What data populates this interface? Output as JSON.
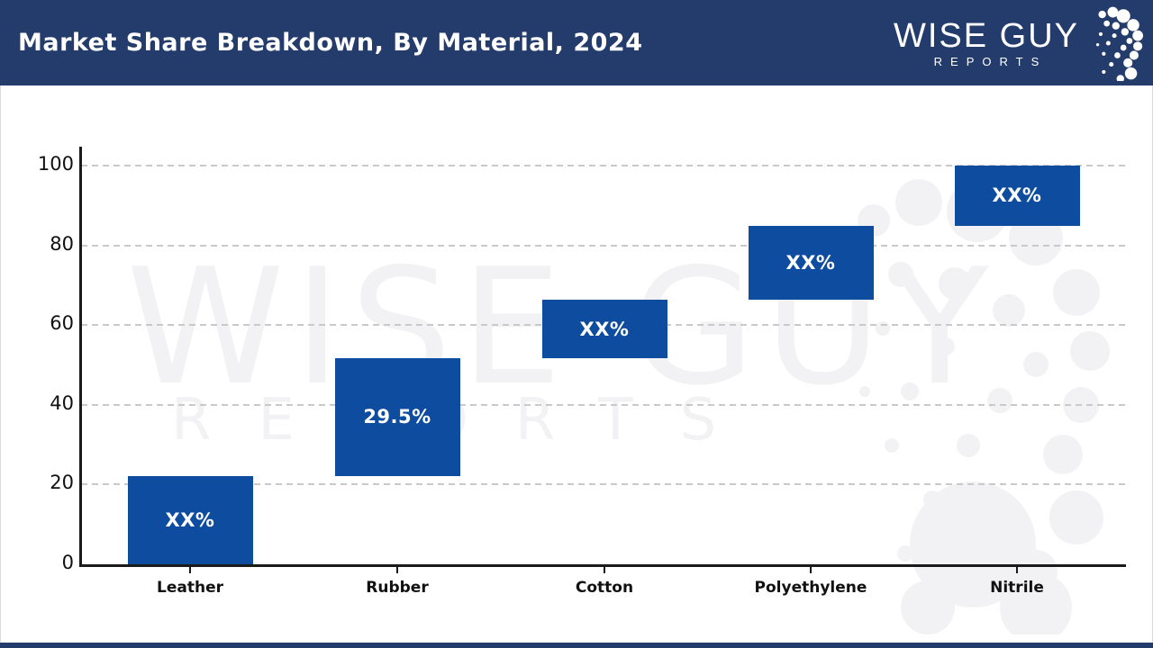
{
  "header": {
    "title": "Market Share Breakdown, By Material, 2024",
    "logo": {
      "line1": "WISE GUY",
      "line2": "REPORTS"
    }
  },
  "watermark": {
    "line1": "WISE GUY",
    "line2": "REPORTS"
  },
  "colors": {
    "header_bg": "#233c6c",
    "footer_bg": "#233c6c",
    "bar": "#0d4c9f",
    "bar_label_text": "#ffffff",
    "gridline": "#c9c9c9",
    "axis": "#1a1a1a",
    "watermark": "#f2f2f4",
    "title_text": "#ffffff"
  },
  "chart_data": {
    "type": "bar",
    "subtype": "waterfall",
    "title": "Market Share Breakdown, By Material, 2024",
    "categories": [
      "Leather",
      "Rubber",
      "Cotton",
      "Polyethylene",
      "Nitrile"
    ],
    "segments": [
      {
        "category": "Leather",
        "start": 0,
        "end": 22.2,
        "label": "XX%"
      },
      {
        "category": "Rubber",
        "start": 22.2,
        "end": 51.7,
        "label": "29.5%"
      },
      {
        "category": "Cotton",
        "start": 51.7,
        "end": 66.4,
        "label": "XX%"
      },
      {
        "category": "Polyethylene",
        "start": 66.4,
        "end": 85.0,
        "label": "XX%"
      },
      {
        "category": "Nitrile",
        "start": 85.0,
        "end": 100.0,
        "label": "XX%"
      }
    ],
    "xlabel": "",
    "ylabel": "",
    "yticks": [
      0,
      20,
      40,
      60,
      80,
      100
    ],
    "ylim": [
      0,
      105
    ],
    "grid": "horizontal-dashed",
    "legend": "none"
  }
}
